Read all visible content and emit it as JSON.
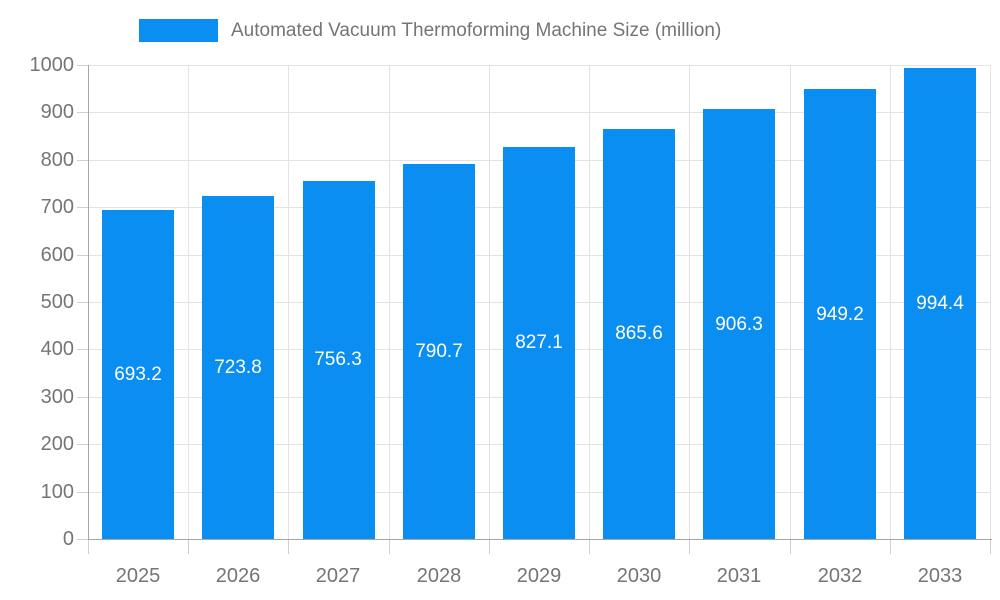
{
  "legend": {
    "label": "Automated Vacuum Thermoforming Machine Size (million)"
  },
  "chart_data": {
    "type": "bar",
    "title": "Automated Vacuum Thermoforming Machine Size (million)",
    "categories": [
      "2025",
      "2026",
      "2027",
      "2028",
      "2029",
      "2030",
      "2031",
      "2032",
      "2033"
    ],
    "values": [
      693.2,
      723.8,
      756.3,
      790.7,
      827.1,
      865.6,
      906.3,
      949.2,
      994.4
    ],
    "value_labels": [
      "693.2",
      "723.8",
      "756.3",
      "790.7",
      "827.1",
      "865.6",
      "906.3",
      "949.2",
      "994.4"
    ],
    "xlabel": "",
    "ylabel": "",
    "ylim": [
      0,
      1000
    ],
    "ytick_step": 100,
    "ytick_labels": [
      "0",
      "100",
      "200",
      "300",
      "400",
      "500",
      "600",
      "700",
      "800",
      "900",
      "1000"
    ],
    "grid": true,
    "legend_position": "top",
    "value_label_position": "inside-middle"
  },
  "colors": {
    "bar": "#0a8ef2",
    "grid_line": "#e3e3e3",
    "axis_line": "#a6a6a6",
    "tick": "#cfcfcf",
    "label_text": "#757575",
    "value_label_text": "#ffffff",
    "background": "#ffffff"
  }
}
